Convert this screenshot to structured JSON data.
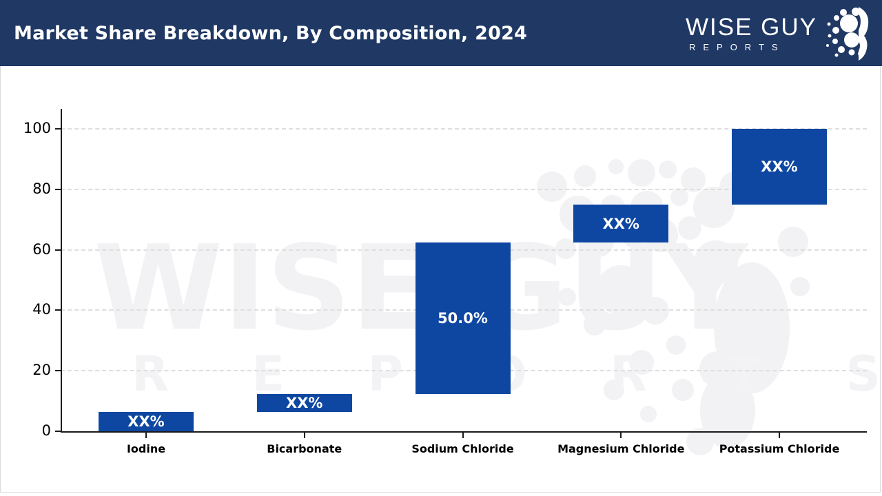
{
  "header": {
    "title": "Market Share Breakdown, By Composition, 2024",
    "logo": {
      "line1": "WISE GUY",
      "line2": "REPORTS"
    }
  },
  "watermark": {
    "line1": "WISE GUY",
    "line2": "R E P O R T S"
  },
  "colors": {
    "header_bg": "#1f3864",
    "bar": "#0d47a1",
    "bar_label": "#ffffff",
    "gridline": "#dedede",
    "axis": "#1a1a1a",
    "watermark": "#f2f2f4"
  },
  "chart_data": {
    "type": "bar",
    "subtype": "waterfall",
    "title": "Market Share Breakdown, By Composition, 2024",
    "categories": [
      "Iodine",
      "Bicarbonate",
      "Sodium Chloride",
      "Magnesium Chloride",
      "Potassium Chloride"
    ],
    "segments": [
      {
        "category": "Iodine",
        "start": 0,
        "end": 6.3,
        "label": "XX%"
      },
      {
        "category": "Bicarbonate",
        "start": 6.3,
        "end": 12.4,
        "label": "XX%"
      },
      {
        "category": "Sodium Chloride",
        "start": 12.4,
        "end": 62.4,
        "label": "50.0%"
      },
      {
        "category": "Magnesium Chloride",
        "start": 62.4,
        "end": 74.9,
        "label": "XX%"
      },
      {
        "category": "Potassium Chloride",
        "start": 74.9,
        "end": 99.9,
        "label": "XX%"
      }
    ],
    "y_ticks": [
      0,
      20,
      40,
      60,
      80,
      100
    ],
    "ylim": [
      0,
      105
    ],
    "xlabel": "",
    "ylabel": "",
    "grid": "horizontal-dashed",
    "legend": "none",
    "bar_color": "#0d47a1",
    "label_color": "#ffffff"
  }
}
